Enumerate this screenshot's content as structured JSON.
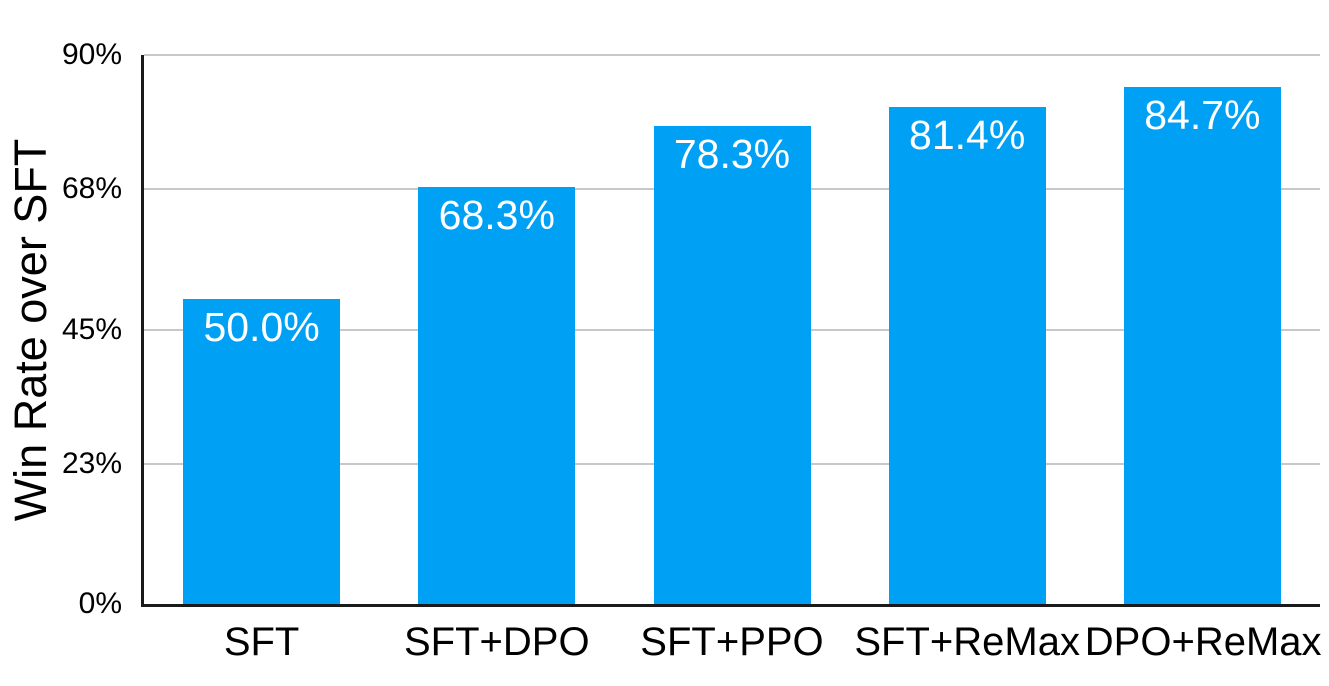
{
  "chart_data": {
    "type": "bar",
    "title": "",
    "xlabel": "",
    "ylabel": "Win Rate over SFT",
    "categories": [
      "SFT",
      "SFT+DPO",
      "SFT+PPO",
      "SFT+ReMax",
      "DPO+ReMax"
    ],
    "values": [
      50.0,
      68.3,
      78.3,
      81.4,
      84.7
    ],
    "value_labels": [
      "50.0%",
      "68.3%",
      "78.3%",
      "81.4%",
      "84.7%"
    ],
    "ylim": [
      0,
      90
    ],
    "yticks": [
      {
        "value": 90,
        "label": "90%"
      },
      {
        "value": 68,
        "label": "68%"
      },
      {
        "value": 45,
        "label": "45%"
      },
      {
        "value": 23,
        "label": "23%"
      },
      {
        "value": 0,
        "label": "0%"
      }
    ],
    "grid": true,
    "legend": "none",
    "colors": {
      "bar": "#00A1F4",
      "value_label_text": "#FFFFFF",
      "axis_line": "#1A1A1A",
      "gridline": "#C8C8C8",
      "text": "#000000"
    }
  }
}
